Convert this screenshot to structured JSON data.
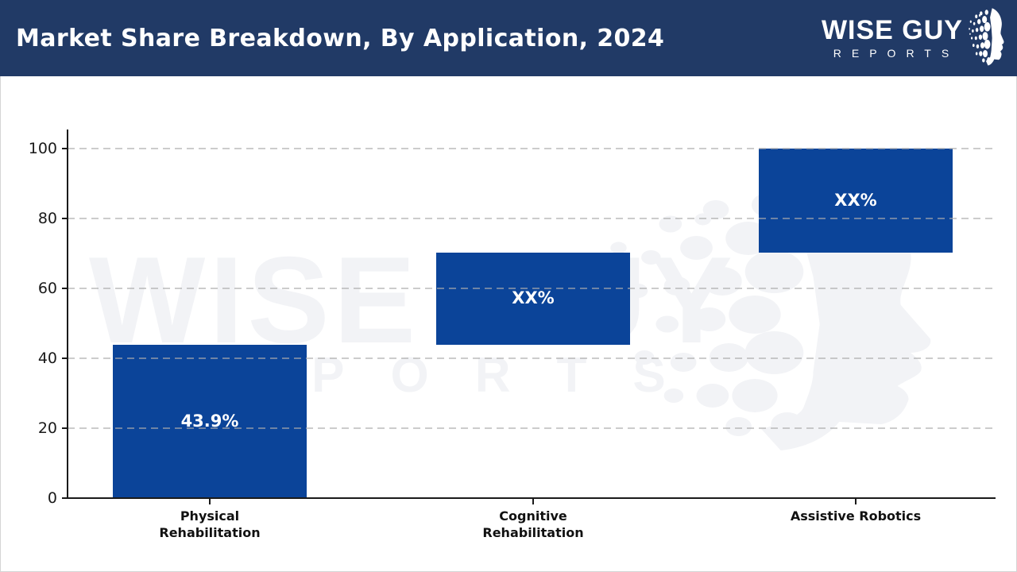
{
  "header": {
    "bg_color": "#213A66",
    "brand": {
      "line1": "WISE GUY",
      "line2": "REPORTS"
    }
  },
  "chart_data": {
    "type": "bar",
    "variant": "waterfall",
    "title": "Market Share Breakdown, By Application, 2024",
    "categories": [
      "Physical\nRehabilitation",
      "Cognitive\nRehabilitation",
      "Assistive Robotics"
    ],
    "segments": [
      {
        "category": "Physical Rehabilitation",
        "start": 0,
        "end": 43.9,
        "label": "43.9%"
      },
      {
        "category": "Cognitive Rehabilitation",
        "start": 43.9,
        "end": 70.2,
        "label": "XX%"
      },
      {
        "category": "Assistive Robotics",
        "start": 70.2,
        "end": 100,
        "label": "XX%"
      }
    ],
    "yticks": [
      0,
      20,
      40,
      60,
      80,
      100
    ],
    "ylim": [
      0,
      105
    ],
    "grid": true,
    "legend": false,
    "bar_color": "#0B4499",
    "value_label_color": "#FFFFFF",
    "axis_color": "#1A1A1A"
  },
  "watermark": {
    "line1": "WISE GUY",
    "line2": "REPORTS"
  }
}
